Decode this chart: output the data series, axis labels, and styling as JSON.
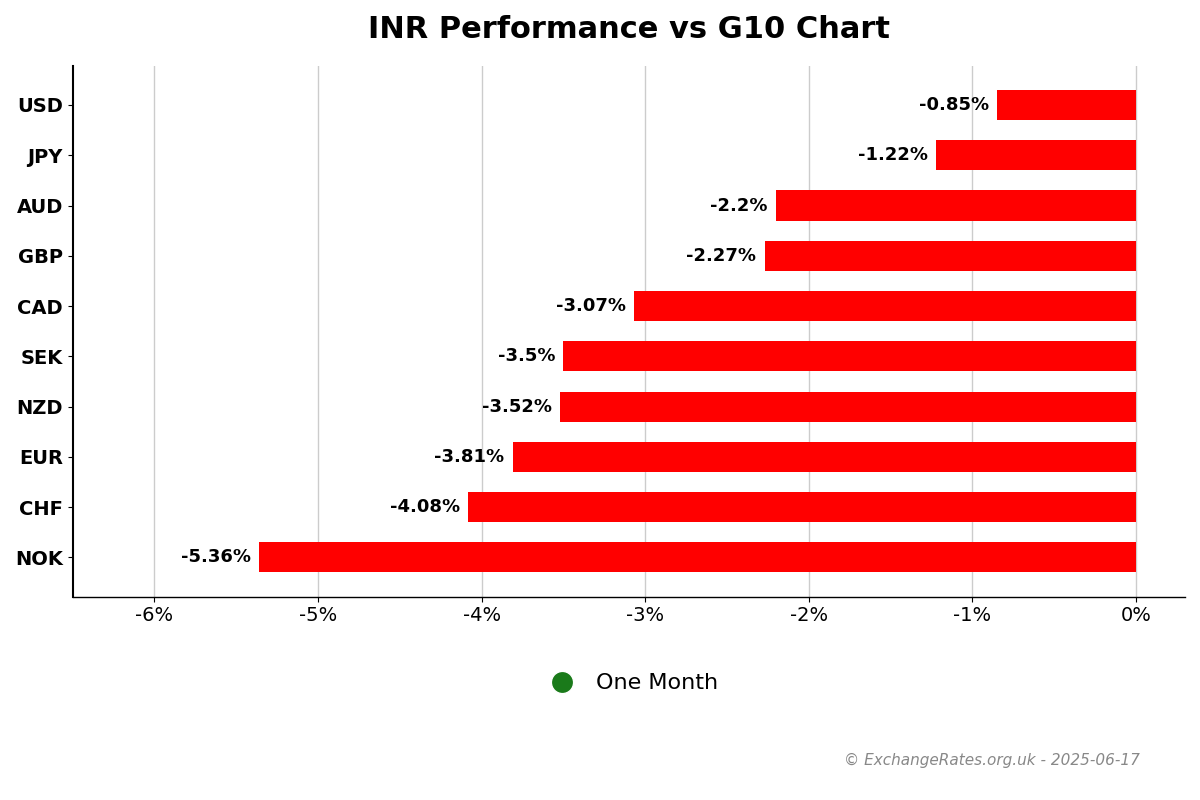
{
  "title": "INR Performance vs G10 Chart",
  "currencies": [
    "USD",
    "JPY",
    "AUD",
    "GBP",
    "CAD",
    "SEK",
    "NZD",
    "EUR",
    "CHF",
    "NOK"
  ],
  "values": [
    -0.85,
    -1.22,
    -2.2,
    -2.27,
    -3.07,
    -3.5,
    -3.52,
    -3.81,
    -4.08,
    -5.36
  ],
  "labels": [
    "-0.85%",
    "-1.22%",
    "-2.2%",
    "-2.27%",
    "-3.07%",
    "-3.5%",
    "-3.52%",
    "-3.81%",
    "-4.08%",
    "-5.36%"
  ],
  "bar_color": "#ff0000",
  "background_color": "#ffffff",
  "text_color": "#000000",
  "label_color": "#000000",
  "title_fontsize": 22,
  "tick_label_fontsize": 14,
  "bar_label_fontsize": 13,
  "xlim": [
    -6.5,
    0.3
  ],
  "legend_label": "One Month",
  "legend_color": "#1a7a1a",
  "copyright_text": "© ExchangeRates.org.uk - 2025-06-17",
  "grid_color": "#cccccc",
  "spine_color": "#000000"
}
